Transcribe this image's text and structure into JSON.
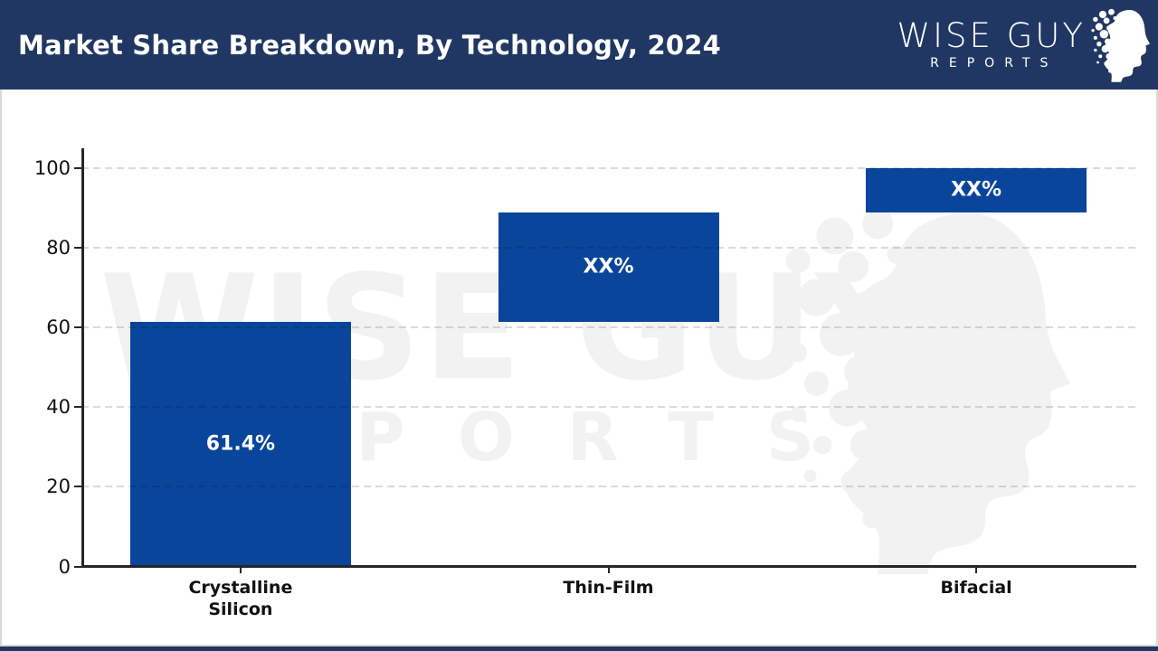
{
  "header": {
    "title": "Market Share Breakdown, By Technology, 2024",
    "brand": {
      "line1": "WISE GUY",
      "line2": "REPORTS"
    }
  },
  "watermark": {
    "line1": "WISE GUY",
    "line2": "REPORTS"
  },
  "chart_data": {
    "type": "bar",
    "subtype": "floating-segment-waterfall",
    "title": "Market Share Breakdown, By Technology, 2024",
    "categories": [
      "Crystalline\nSilicon",
      "Thin-Film",
      "Bifacial"
    ],
    "bars": [
      {
        "category": "Crystalline Silicon",
        "label": "61.4%",
        "start": 0,
        "end": 61.4
      },
      {
        "category": "Thin-Film",
        "label": "XX%",
        "start": 61.4,
        "end": 88.9
      },
      {
        "category": "Bifacial",
        "label": "XX%",
        "start": 88.9,
        "end": 100
      }
    ],
    "xlabel": "",
    "ylabel": "",
    "ylim": [
      0,
      100
    ],
    "yticks": [
      0,
      20,
      40,
      60,
      80,
      100
    ],
    "grid": "horizontal-dashed",
    "legend": "none",
    "bar_color": "#0a459c"
  },
  "colors": {
    "header_bg": "#213763",
    "footer_bg": "#213763",
    "bar": "#0a459c",
    "watermark": "#f2f2f3",
    "axis": "#262626"
  }
}
